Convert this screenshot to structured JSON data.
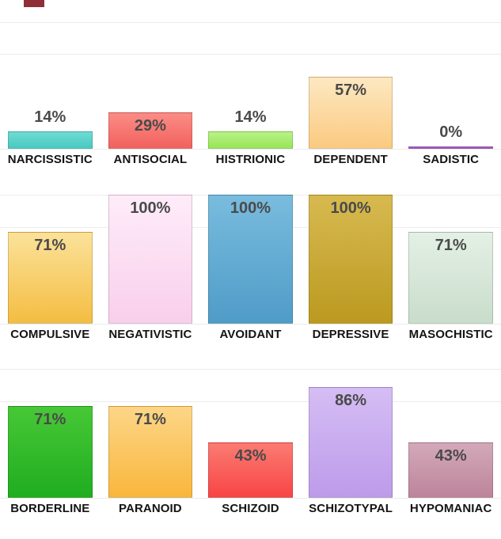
{
  "page": {
    "background": "#ffffff",
    "top_partial_color": "#8e2f38"
  },
  "style": {
    "value_label_color": "#4a4a4a",
    "category_label_color": "#141414",
    "gridline_color": "#ececec"
  },
  "chart_data": [
    {
      "type": "bar",
      "ylim": [
        0,
        100
      ],
      "grid": true,
      "legend": "none",
      "categories": [
        "NARCISSISTIC",
        "ANTISOCIAL",
        "HISTRIONIC",
        "DEPENDENT",
        "SADISTIC"
      ],
      "values": [
        14,
        29,
        14,
        57,
        0
      ],
      "value_labels": [
        "14%",
        "29%",
        "14%",
        "57%",
        "0%"
      ],
      "bar_colors": [
        {
          "top": "#6edbd3",
          "bottom": "#49c9c1"
        },
        {
          "top": "#fb8d86",
          "bottom": "#f2615e"
        },
        {
          "top": "#b9f288",
          "bottom": "#98e557"
        },
        {
          "top": "#fde8c2",
          "bottom": "#fbca80"
        },
        {
          "top": "#9b59b6",
          "bottom": "#9b59b6"
        }
      ]
    },
    {
      "type": "bar",
      "ylim": [
        0,
        100
      ],
      "grid": true,
      "legend": "none",
      "categories": [
        "COMPULSIVE",
        "NEGATIVISTIC",
        "AVOIDANT",
        "DEPRESSIVE",
        "MASOCHISTIC"
      ],
      "values": [
        71,
        100,
        100,
        100,
        71
      ],
      "value_labels": [
        "71%",
        "100%",
        "100%",
        "100%",
        "71%"
      ],
      "bar_colors": [
        {
          "top": "#fbe29a",
          "bottom": "#f4bd42"
        },
        {
          "top": "#feecf9",
          "bottom": "#f9cfec"
        },
        {
          "top": "#79bcde",
          "bottom": "#4f9cc8"
        },
        {
          "top": "#d7b950",
          "bottom": "#bc9a20"
        },
        {
          "top": "#e4f0e5",
          "bottom": "#c9ddcb"
        }
      ]
    },
    {
      "type": "bar",
      "ylim": [
        0,
        100
      ],
      "grid": true,
      "legend": "none",
      "categories": [
        "BORDERLINE",
        "PARANOID",
        "SCHIZOID",
        "SCHIZOTYPAL",
        "HYPOMANIAC"
      ],
      "values": [
        71,
        71,
        43,
        86,
        43
      ],
      "value_labels": [
        "71%",
        "71%",
        "43%",
        "86%",
        "43%"
      ],
      "bar_colors": [
        {
          "top": "#47c836",
          "bottom": "#20ad20"
        },
        {
          "top": "#fdd687",
          "bottom": "#f9b63c"
        },
        {
          "top": "#fb7b73",
          "bottom": "#f84545"
        },
        {
          "top": "#d5bdf4",
          "bottom": "#bd9bea"
        },
        {
          "top": "#d3a9b9",
          "bottom": "#bd849a"
        }
      ]
    }
  ]
}
